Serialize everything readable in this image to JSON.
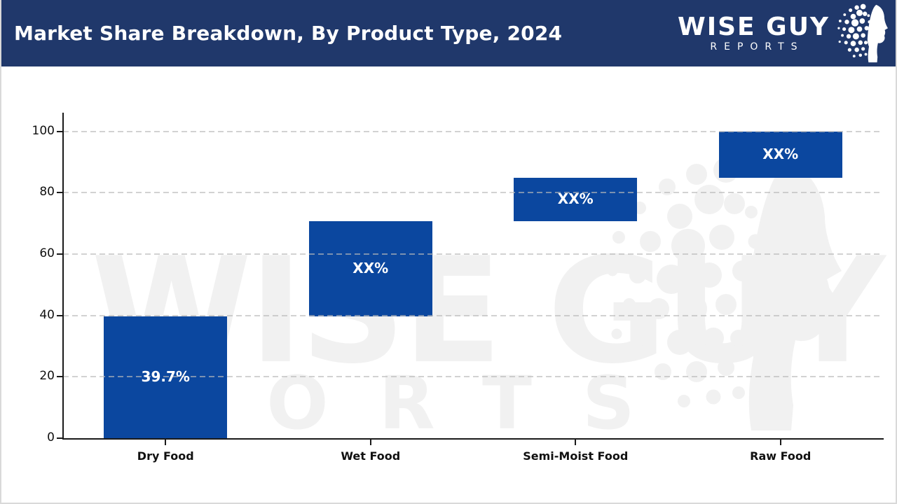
{
  "header": {
    "title": "Market Share Breakdown, By Product Type, 2024",
    "logo": {
      "line1": "WISE GUY",
      "line2": "REPORTS"
    }
  },
  "watermark": {
    "line1": "WISE GUY",
    "line2": "PORTS"
  },
  "colors": {
    "header_bg": "#20386b",
    "title_text": "#ffffff",
    "bar_fill": "#0b479f",
    "bar_label": "#ffffff",
    "axis": "#1a1a1a",
    "gridline": "#bebebe",
    "watermark": "#f1f1f1",
    "page_border": "#d9d9d9"
  },
  "chart_data": {
    "type": "bar",
    "subtype": "waterfall",
    "title": "Market Share Breakdown, By Product Type, 2024",
    "xlabel": "",
    "ylabel": "",
    "categories": [
      "Dry Food",
      "Wet Food",
      "Semi-Moist Food",
      "Raw Food"
    ],
    "segments": [
      {
        "category": "Dry Food",
        "start": 0,
        "end": 39.7,
        "label": "39.7%"
      },
      {
        "category": "Wet Food",
        "start": 39.7,
        "end": 70.8,
        "label": "XX%"
      },
      {
        "category": "Semi-Moist Food",
        "start": 70.8,
        "end": 84.9,
        "label": "XX%"
      },
      {
        "category": "Raw Food",
        "start": 84.9,
        "end": 100,
        "label": "XX%"
      }
    ],
    "yticks": [
      0,
      20,
      40,
      60,
      80,
      100
    ],
    "ylim": [
      0,
      105
    ],
    "grid": "horizontal-dashed",
    "legend": null
  }
}
